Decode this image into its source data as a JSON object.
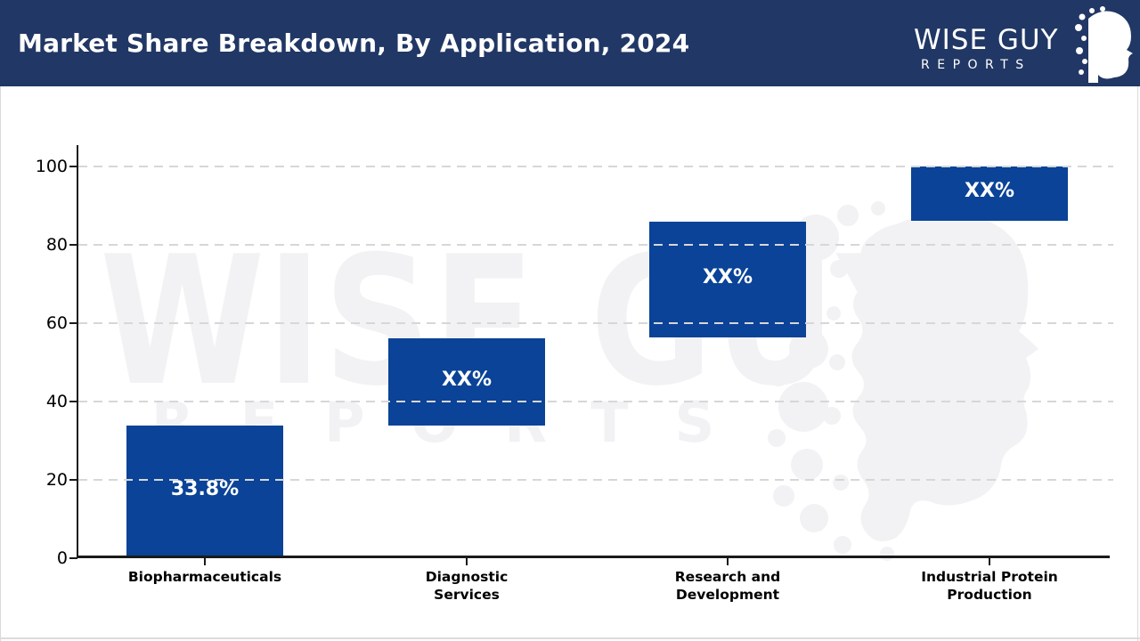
{
  "header": {
    "title": "Market Share Breakdown, By Application, 2024",
    "brand": {
      "line1": "WISE GUY",
      "line2": "REPORTS"
    }
  },
  "watermark": {
    "line1": "WISE GUY",
    "line2": "REPORTS"
  },
  "chart_data": {
    "type": "bar",
    "subtype": "floating-waterfall",
    "title": "Market Share Breakdown, By Application, 2024",
    "ylim": [
      0,
      100
    ],
    "yticks": [
      0,
      20,
      40,
      60,
      80,
      100
    ],
    "grid": "horizontal-dashed",
    "legend": "none",
    "bar_color": "#0a4397",
    "bar_label_color": "#ffffff",
    "categories": [
      "Biopharmaceuticals",
      "Diagnostic Services",
      "Research and Development",
      "Industrial Protein Production"
    ],
    "segments": [
      {
        "category": "Biopharmaceuticals",
        "display": "Biopharmaceuticals",
        "start": 0,
        "end": 33.8,
        "label": "33.8%"
      },
      {
        "category": "Diagnostic Services",
        "display": "Diagnostic\nServices",
        "start": 33.8,
        "end": 56.1,
        "label": "XX%"
      },
      {
        "category": "Research and Development",
        "display": "Research and\nDevelopment",
        "start": 56.2,
        "end": 85.8,
        "label": "XX%"
      },
      {
        "category": "Industrial Protein Production",
        "display": "Industrial Protein\nProduction",
        "start": 86.1,
        "end": 100,
        "label": "XX%"
      }
    ]
  },
  "colors": {
    "header_bg": "#213765",
    "bar": "#0a4397",
    "axis": "#1a1a1a",
    "gridline": "#d7d7d7",
    "watermark": "#f2f2f4",
    "frame": "#d9d9d9",
    "title_text": "#ffffff",
    "bar_label": "#ffffff",
    "tick_text": "#000000"
  }
}
